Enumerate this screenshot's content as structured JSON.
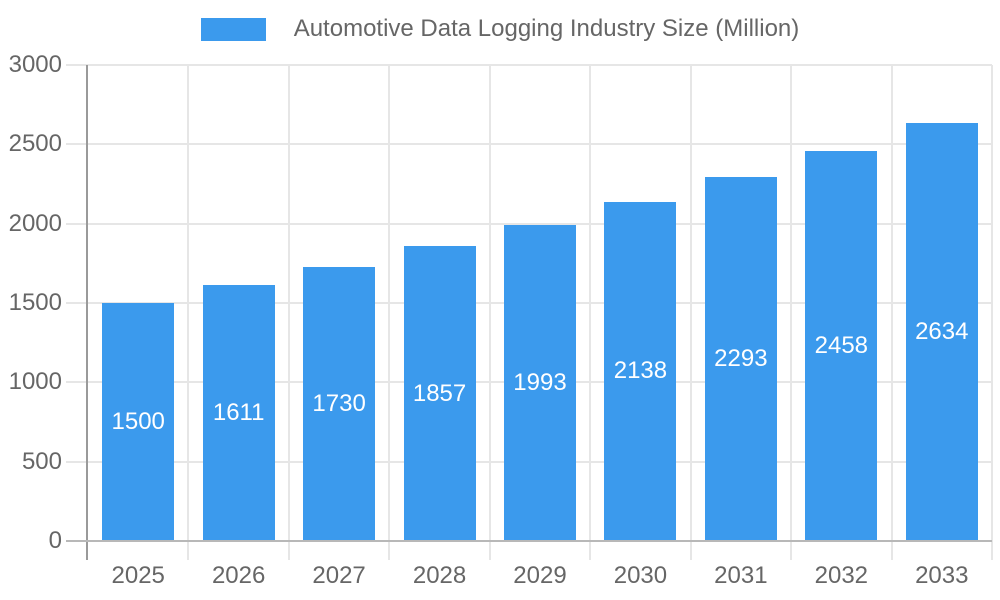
{
  "legend": {
    "title": "Automotive Data Logging Industry Size (Million)"
  },
  "chart_data": {
    "type": "bar",
    "title": "Automotive Data Logging Industry Size (Million)",
    "categories": [
      "2025",
      "2026",
      "2027",
      "2028",
      "2029",
      "2030",
      "2031",
      "2032",
      "2033"
    ],
    "values": [
      1500,
      1611,
      1730,
      1857,
      1993,
      2138,
      2293,
      2458,
      2634
    ],
    "value_labels": [
      "1500",
      "1611",
      "1730",
      "1857",
      "1993",
      "2138",
      "2293",
      "2458",
      "2634"
    ],
    "xlabel": "",
    "ylabel": "",
    "ylim": [
      0,
      3000
    ],
    "ytick_step": 500,
    "ytick_labels": [
      "0",
      "500",
      "1000",
      "1500",
      "2000",
      "2500",
      "3000"
    ],
    "grid": true,
    "legend_position": "top",
    "bar_color": "#3B9AED",
    "value_label_color": "#FFFFFF",
    "axis_text_color": "#666666",
    "grid_color": "#E6E6E6",
    "baseline_color": "#B8B8B8",
    "axis_line_color": "#9A9A9A"
  }
}
